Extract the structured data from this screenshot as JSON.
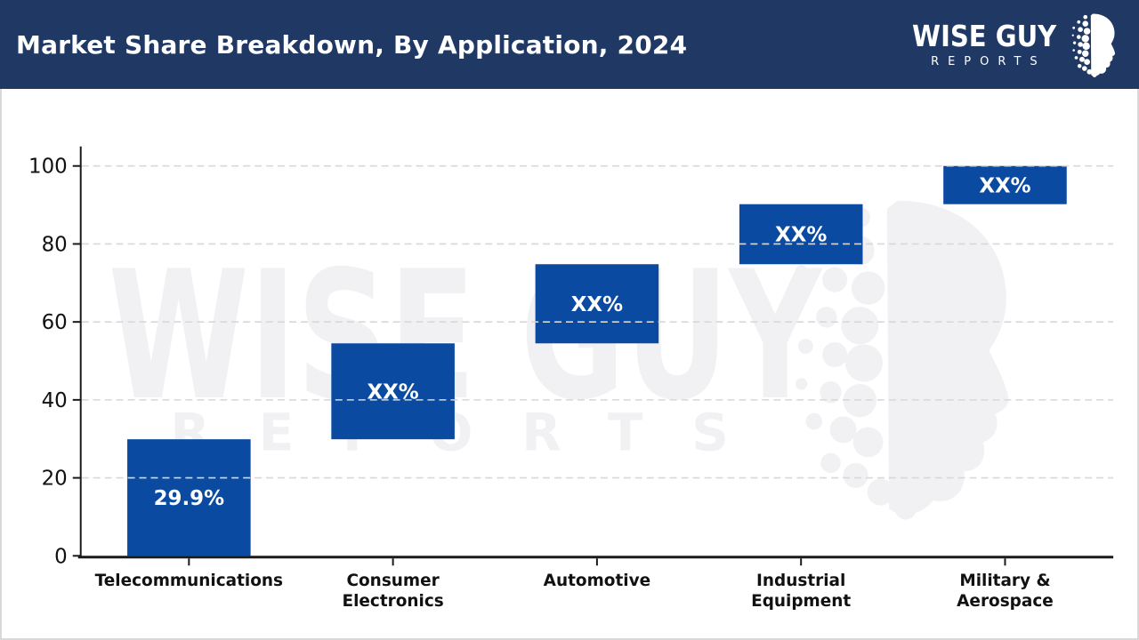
{
  "header": {
    "title": "Market Share Breakdown, By Application, 2024",
    "logo": {
      "line1": "WISE GUY",
      "line2": "REPORTS"
    }
  },
  "watermark": {
    "line1": "WISE GUY",
    "line2": "REPORTS"
  },
  "colors": {
    "header_bg": "#1f3864",
    "bar": "#0b4aa1",
    "grid": "#d8d8d8",
    "axis": "#1a1a1a",
    "tick_label": "#111111",
    "value_label": "#ffffff",
    "watermark": "#f1f1f3",
    "border": "#d9d9d9"
  },
  "chart_data": {
    "type": "bar",
    "variant": "waterfall",
    "title": "Market Share Breakdown, By Application, 2024",
    "categories": [
      "Telecommunications",
      "Consumer Electronics",
      "Automotive",
      "Industrial Equipment",
      "Military & Aerospace"
    ],
    "category_label_lines": [
      [
        "Telecommunications"
      ],
      [
        "Consumer",
        "Electronics"
      ],
      [
        "Automotive"
      ],
      [
        "Industrial",
        "Equipment"
      ],
      [
        "Military &",
        "Aerospace"
      ]
    ],
    "segments": [
      {
        "category": "Telecommunications",
        "start": 0,
        "end": 29.9,
        "label": "29.9%"
      },
      {
        "category": "Consumer Electronics",
        "start": 29.9,
        "end": 54.5,
        "label": "XX%"
      },
      {
        "category": "Automotive",
        "start": 54.5,
        "end": 74.8,
        "label": "XX%"
      },
      {
        "category": "Industrial Equipment",
        "start": 74.8,
        "end": 90.2,
        "label": "XX%"
      },
      {
        "category": "Military & Aerospace",
        "start": 90.2,
        "end": 100,
        "label": "XX%"
      }
    ],
    "xlabel": "",
    "ylabel": "",
    "ylim": [
      0,
      105
    ],
    "yticks": [
      0,
      20,
      40,
      60,
      80,
      100
    ],
    "grid": "horizontal-dashed",
    "gridlines_above_bars": true,
    "legend": null
  }
}
